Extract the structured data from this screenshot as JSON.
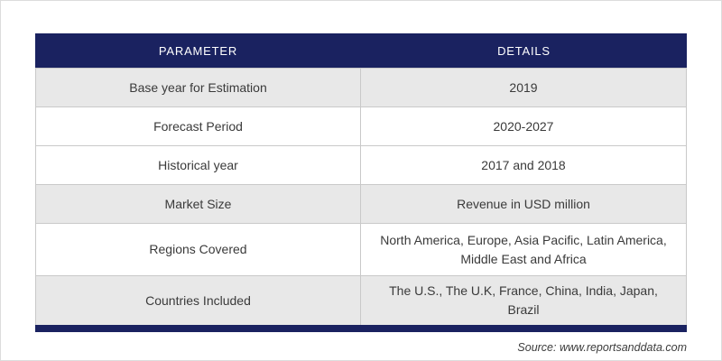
{
  "accent_color": "#1a2260",
  "shaded_row_color": "#e8e8e8",
  "table": {
    "headers": [
      "PARAMETER",
      "DETAILS"
    ],
    "rows": [
      {
        "parameter": "Base year for Estimation",
        "details": "2019"
      },
      {
        "parameter": "Forecast Period",
        "details": "2020-2027"
      },
      {
        "parameter": "Historical year",
        "details": "2017 and 2018"
      },
      {
        "parameter": "Market Size",
        "details": "Revenue in USD million"
      },
      {
        "parameter": "Regions Covered",
        "details": "North America, Europe, Asia Pacific, Latin America, Middle East and Africa"
      },
      {
        "parameter": "Countries Included",
        "details": "The U.S., The  U.K, France, China, India, Japan, Brazil"
      }
    ]
  },
  "source": "Source: www.reportsanddata.com",
  "chart_data": {
    "type": "table",
    "columns": [
      "PARAMETER",
      "DETAILS"
    ],
    "rows": [
      [
        "Base year for Estimation",
        "2019"
      ],
      [
        "Forecast Period",
        "2020-2027"
      ],
      [
        "Historical year",
        "2017 and 2018"
      ],
      [
        "Market Size",
        "Revenue in USD million"
      ],
      [
        "Regions Covered",
        "North America, Europe, Asia Pacific, Latin America, Middle East and Africa"
      ],
      [
        "Countries Included",
        "The U.S., The  U.K, France, China, India, Japan, Brazil"
      ]
    ],
    "title": "",
    "notes": "Report scope table with navy header row, alternating gray/white body rows, navy bottom bar, italic source line"
  }
}
